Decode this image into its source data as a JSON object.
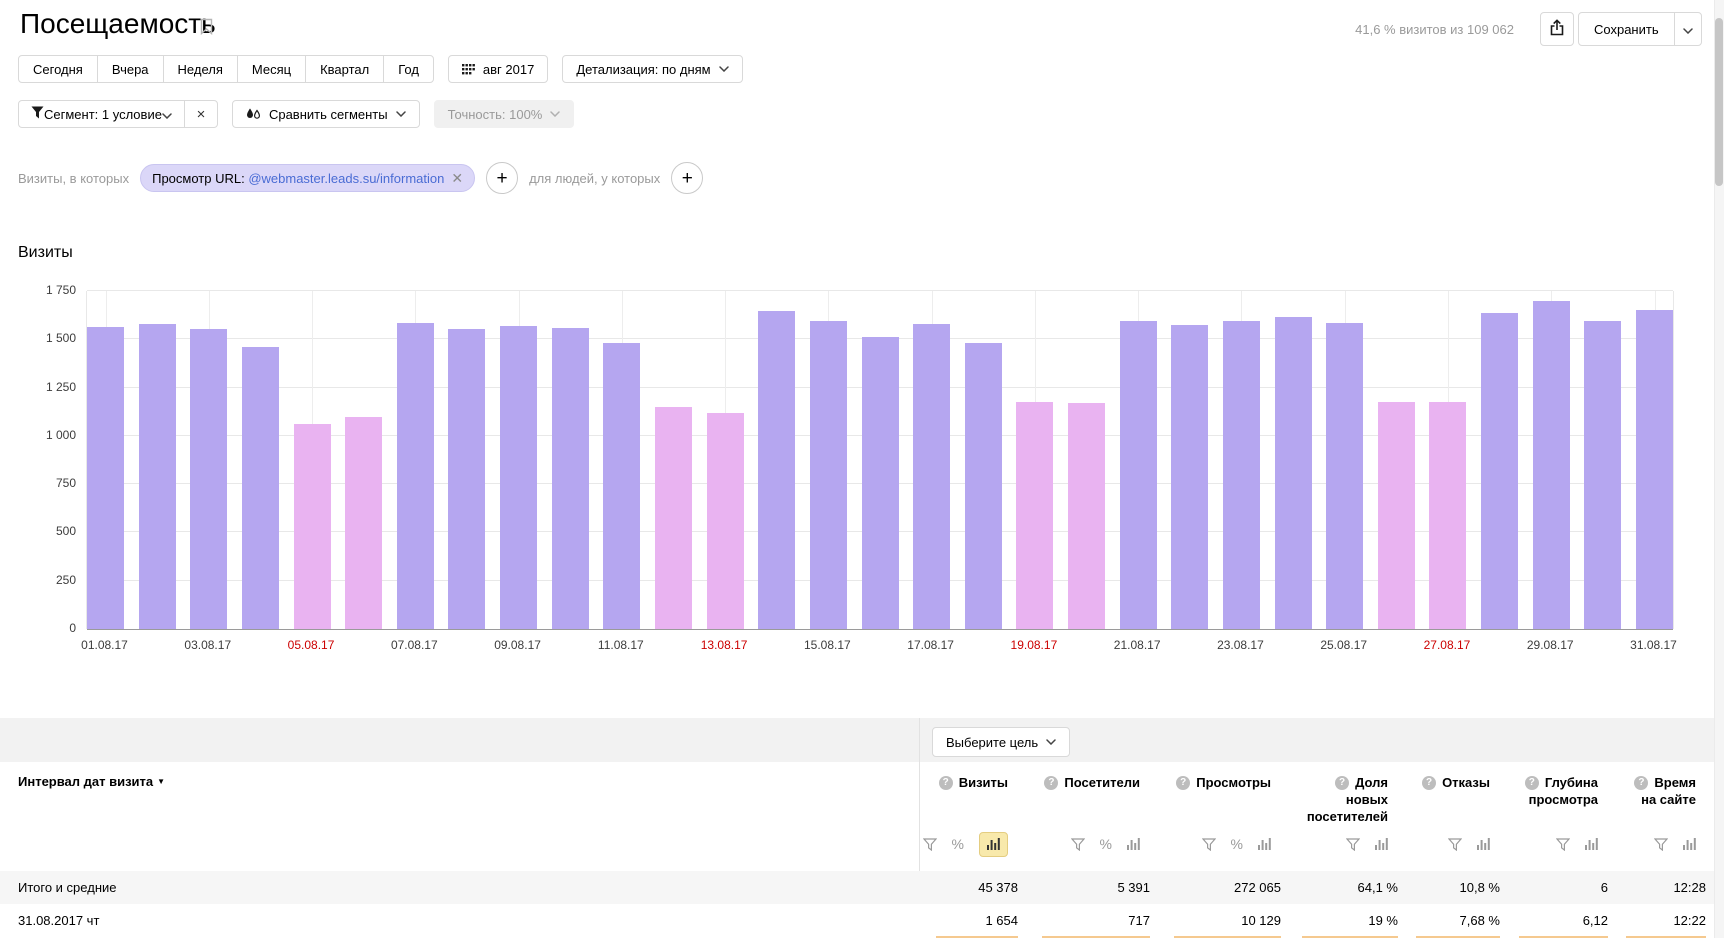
{
  "header": {
    "title": "Посещаемость",
    "sample_info": "41,6 % визитов из 109 062",
    "save_label": "Сохранить"
  },
  "period_tabs": [
    "Сегодня",
    "Вчера",
    "Неделя",
    "Месяц",
    "Квартал",
    "Год"
  ],
  "date_picker_label": "авг 2017",
  "detail_label": "Детализация: по дням",
  "segment_bar": {
    "segment_label": "Сегмент: 1 условие",
    "compare_label": "Сравнить сегменты",
    "accuracy_label": "Точность: 100%"
  },
  "filters": {
    "visits_prefix": "Визиты, в которых",
    "chip_label": "Просмотр URL:",
    "chip_value": "@webmaster.leads.su/information",
    "people_prefix": "для людей, у которых"
  },
  "icons": {
    "bookmark-icon": "outline bookmark flag",
    "share-icon": "box with up arrow (export)",
    "chevron-down-icon": "v chevron",
    "calendar-grid-icon": "dot grid calendar",
    "funnel-icon": "filter funnel",
    "compare-segments-icon": "two water drops",
    "close-icon": "×",
    "plus-icon": "+",
    "question-icon": "? in gray circle",
    "percent-icon": "%",
    "bar-chart-icon": "small column chart"
  },
  "colors": {
    "bar_weekday": "#b5a6f0",
    "bar_weekend": "#e9b3f1",
    "weekend_label": "#cc0000",
    "selected_metric_bg": "#f8e9ab",
    "row_value_bar": "#f5c98f",
    "chip_bg": "#dbd7f8",
    "chip_link": "#4a6cd4"
  },
  "chart_data": {
    "type": "bar",
    "title": "Визиты",
    "x": [
      "01.08.17",
      "02.08.17",
      "03.08.17",
      "04.08.17",
      "05.08.17",
      "06.08.17",
      "07.08.17",
      "08.08.17",
      "09.08.17",
      "10.08.17",
      "11.08.17",
      "12.08.17",
      "13.08.17",
      "14.08.17",
      "15.08.17",
      "16.08.17",
      "17.08.17",
      "18.08.17",
      "19.08.17",
      "20.08.17",
      "21.08.17",
      "22.08.17",
      "23.08.17",
      "24.08.17",
      "25.08.17",
      "26.08.17",
      "27.08.17",
      "28.08.17",
      "29.08.17",
      "30.08.17",
      "31.08.17"
    ],
    "values": [
      1565,
      1580,
      1555,
      1460,
      1060,
      1100,
      1585,
      1555,
      1570,
      1560,
      1480,
      1150,
      1120,
      1645,
      1595,
      1510,
      1580,
      1480,
      1175,
      1170,
      1595,
      1575,
      1595,
      1615,
      1585,
      1175,
      1175,
      1635,
      1700,
      1595,
      1650
    ],
    "weekend_indices": [
      4,
      5,
      11,
      12,
      18,
      19,
      25,
      26
    ],
    "ylim": [
      0,
      1750
    ],
    "yticks": [
      "0",
      "250",
      "500",
      "750",
      "1 000",
      "1 250",
      "1 500",
      "1 750"
    ],
    "xtick_labels": [
      "01.08.17",
      "03.08.17",
      "05.08.17",
      "07.08.17",
      "09.08.17",
      "11.08.17",
      "13.08.17",
      "15.08.17",
      "17.08.17",
      "19.08.17",
      "21.08.17",
      "23.08.17",
      "25.08.17",
      "27.08.17",
      "29.08.17",
      "31.08.17"
    ],
    "xtick_red_indices": [
      2,
      6,
      9,
      13
    ],
    "grid": true,
    "legend": false
  },
  "table": {
    "goal_button": "Выберите цель",
    "row_label_header": "Интервал дат визита",
    "columns": [
      {
        "label": "Визиты",
        "lines": [
          "Визиты"
        ],
        "icons": [
          "filter",
          "percent",
          "chart"
        ],
        "selected_view": "chart"
      },
      {
        "label": "Посетители",
        "lines": [
          "Посетители"
        ],
        "icons": [
          "filter",
          "percent",
          "chart"
        ],
        "selected_view": null
      },
      {
        "label": "Просмотры",
        "lines": [
          "Просмотры"
        ],
        "icons": [
          "filter",
          "percent",
          "chart"
        ],
        "selected_view": null
      },
      {
        "label": "Доля новых посетителей",
        "lines": [
          "Доля",
          "новых",
          "посетителей"
        ],
        "icons": [
          "filter",
          "chart"
        ],
        "selected_view": null
      },
      {
        "label": "Отказы",
        "lines": [
          "Отказы"
        ],
        "icons": [
          "filter",
          "chart"
        ],
        "selected_view": null
      },
      {
        "label": "Глубина просмотра",
        "lines": [
          "Глубина",
          "просмотра"
        ],
        "icons": [
          "filter",
          "chart"
        ],
        "selected_view": null
      },
      {
        "label": "Время на сайте",
        "lines": [
          "Время",
          "на сайте"
        ],
        "icons": [
          "filter",
          "chart"
        ],
        "selected_view": null
      }
    ],
    "totals": {
      "label": "Итого и средние",
      "values": [
        "45 378",
        "5 391",
        "272 065",
        "64,1 %",
        "10,8 %",
        "6",
        "12:28"
      ]
    },
    "rows": [
      {
        "label": "31.08.2017 чт",
        "values": [
          "1 654",
          "717",
          "10 129",
          "19 %",
          "7,68 %",
          "6,12",
          "12:22"
        ]
      }
    ]
  }
}
